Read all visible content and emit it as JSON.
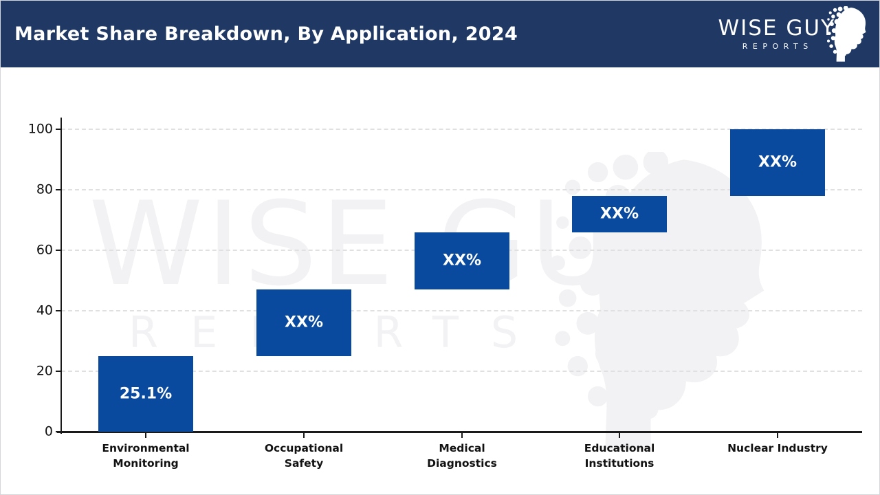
{
  "header": {
    "title": "Market Share Breakdown, By Application, 2024",
    "logo": {
      "brand": "WISE GUY",
      "sub": "REPORTS"
    }
  },
  "watermark": {
    "brand": "WISE GUY",
    "sub": "REPORTS"
  },
  "chart_data": {
    "type": "bar",
    "subtype": "floating-waterfall",
    "title": "Market Share Breakdown, By Application, 2024",
    "categories": [
      "Environmental\nMonitoring",
      "Occupational\nSafety",
      "Medical\nDiagnostics",
      "Educational\nInstitutions",
      "Nuclear Industry"
    ],
    "segments": [
      {
        "start": 0,
        "end": 25.1,
        "label": "25.1%"
      },
      {
        "start": 25.1,
        "end": 47,
        "label": "XX%"
      },
      {
        "start": 47,
        "end": 66,
        "label": "XX%"
      },
      {
        "start": 66,
        "end": 78,
        "label": "XX%"
      },
      {
        "start": 78,
        "end": 100,
        "label": "XX%"
      }
    ],
    "yticks": [
      0,
      20,
      40,
      60,
      80,
      100
    ],
    "ylim": [
      0,
      100
    ],
    "grid": "horizontal-dashed",
    "legend": "none",
    "xlabel": "",
    "ylabel": ""
  },
  "colors": {
    "header_bg": "#1f3864",
    "bar": "#0a4a9e",
    "bar_label": "#ffffff",
    "axis": "#1a1a1a",
    "grid": "#e0e0e0",
    "watermark": "#f2f2f4",
    "border": "#d6d6da"
  }
}
